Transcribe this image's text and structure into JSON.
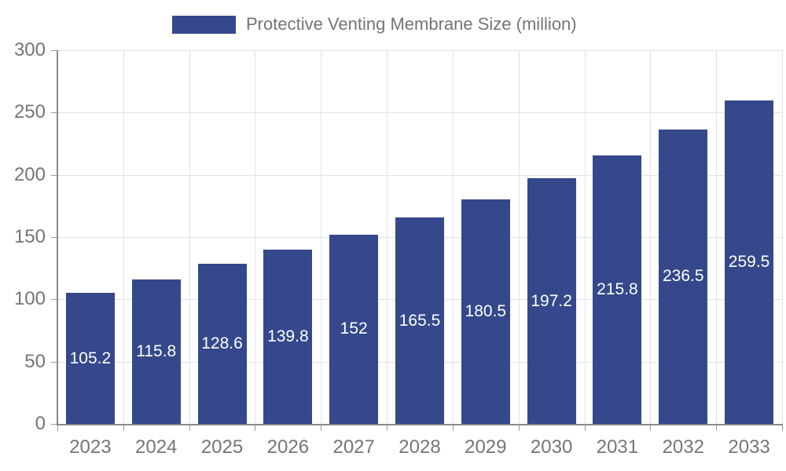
{
  "legend": {
    "label": "Protective Venting Membrane Size (million)"
  },
  "colors": {
    "bar": "#35488b",
    "axis_line": "#8a8a8a",
    "grid_line": "#e2e2e2",
    "tick_text": "#757575",
    "bar_label_text": "#ffffff",
    "background": "#ffffff"
  },
  "chart_data": {
    "type": "bar",
    "title": "Protective Venting Membrane Size (million)",
    "series_name": "Protective Venting Membrane Size (million)",
    "categories": [
      "2023",
      "2024",
      "2025",
      "2026",
      "2027",
      "2028",
      "2029",
      "2030",
      "2031",
      "2032",
      "2033"
    ],
    "values": [
      105.2,
      115.8,
      128.6,
      139.8,
      152,
      165.5,
      180.5,
      197.2,
      215.8,
      236.5,
      259.5
    ],
    "value_labels": [
      "105.2",
      "115.8",
      "128.6",
      "139.8",
      "152",
      "165.5",
      "180.5",
      "197.2",
      "215.8",
      "236.5",
      "259.5"
    ],
    "xlabel": "",
    "ylabel": "",
    "ylim": [
      0,
      300
    ],
    "y_ticks": [
      0,
      50,
      100,
      150,
      200,
      250,
      300
    ],
    "grid": "horizontal and vertical light gridlines",
    "legend_position": "top-center",
    "value_label_position": "inside-center"
  }
}
